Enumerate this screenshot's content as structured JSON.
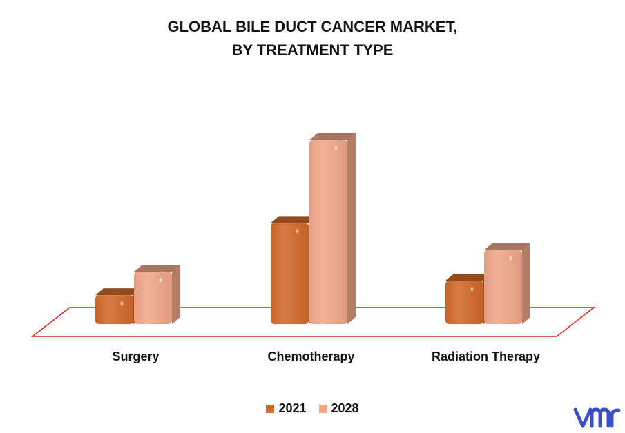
{
  "chart_data": {
    "type": "bar",
    "title": "GLOBAL BILE DUCT CANCER MARKET, BY TREATMENT TYPE",
    "title_lines": [
      "GLOBAL BILE DUCT CANCER MARKET,",
      "BY TREATMENT TYPE"
    ],
    "categories": [
      "Surgery",
      "Chemotherapy",
      "Radiation Therapy"
    ],
    "series": [
      {
        "name": "2021",
        "values": [
          1.6,
          5.6,
          2.4
        ],
        "color": "#d2692a"
      },
      {
        "name": "2028",
        "values": [
          2.9,
          10.2,
          4.1
        ],
        "color": "#f0a78a"
      }
    ],
    "ylim": [
      0,
      11
    ],
    "xlabel": "",
    "ylabel": "",
    "grid": false,
    "legend_position": "bottom",
    "style": "3d-bar",
    "floor_color": "#e02020"
  },
  "logo": {
    "name": "vmr-logo",
    "color": "#3b4fc4"
  }
}
